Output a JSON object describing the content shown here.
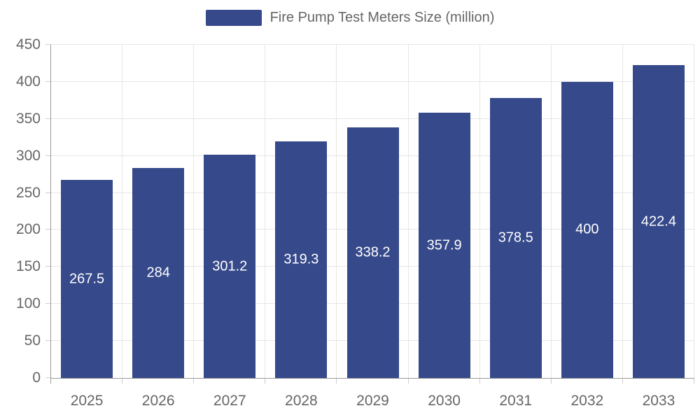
{
  "legend": {
    "label": "Fire Pump Test Meters Size (million)"
  },
  "chart_data": {
    "type": "bar",
    "title": "Fire Pump Test Meters Size (million)",
    "categories": [
      "2025",
      "2026",
      "2027",
      "2028",
      "2029",
      "2030",
      "2031",
      "2032",
      "2033"
    ],
    "values": [
      267.5,
      284,
      301.2,
      319.3,
      338.2,
      357.9,
      378.5,
      400,
      422.4
    ],
    "xlabel": "",
    "ylabel": "",
    "ylim": [
      0,
      450
    ],
    "y_ticks": [
      0,
      50,
      100,
      150,
      200,
      250,
      300,
      350,
      400,
      450
    ],
    "grid": true,
    "legend_position": "top",
    "colors": {
      "bar": "#36498A",
      "bar_label": "#FFFFFF",
      "axis_text": "#666666",
      "grid": "#E6E6E6",
      "axis_line": "#9A9A9A",
      "tick": "#CCCCCC",
      "background": "#FFFFFF"
    }
  }
}
